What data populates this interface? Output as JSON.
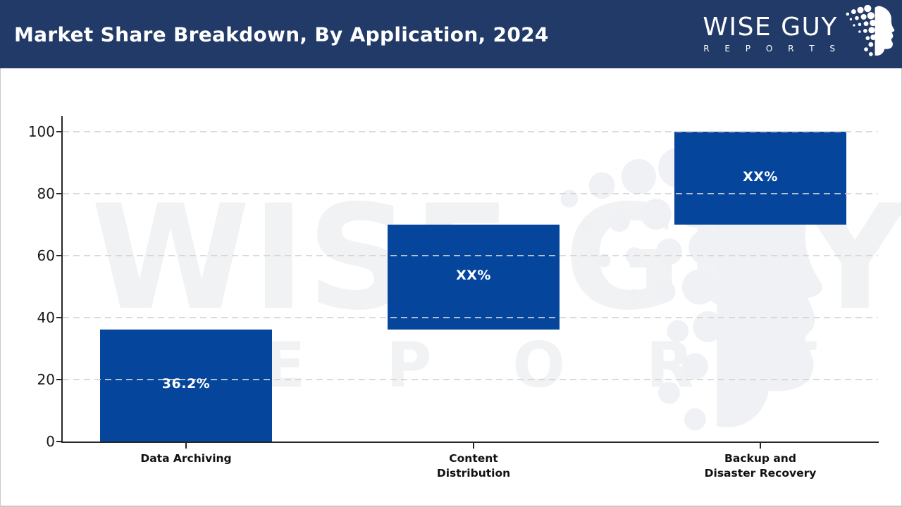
{
  "header": {
    "title": "Market Share Breakdown, By Application, 2024",
    "logo": {
      "line1": "WISE GUY",
      "line2": "R E P O R T S"
    }
  },
  "watermark": {
    "line1": "WISE GUY",
    "line2": "R E P O R T S"
  },
  "colors": {
    "header_bg": "#223A68",
    "bar_blue": "#05459C",
    "bar_label_text": "#FFFFFF",
    "gridline": "#D4D4D4",
    "watermark_gray": "#F1F2F4"
  },
  "chart_data": {
    "type": "bar",
    "variant": "floating-segment-bars",
    "title": "Market Share Breakdown, By Application, 2024",
    "categories": [
      "Data Archiving",
      "Content Distribution",
      "Backup and Disaster Recovery"
    ],
    "category_label_lines": [
      [
        "Data Archiving"
      ],
      [
        "Content",
        "Distribution"
      ],
      [
        "Backup and",
        "Disaster Recovery"
      ]
    ],
    "bars": [
      {
        "category": "Data Archiving",
        "start": 0,
        "end": 36.2,
        "label": "36.2%"
      },
      {
        "category": "Content Distribution",
        "start": 36.2,
        "end": 70,
        "label": "XX%"
      },
      {
        "category": "Backup and Disaster Recovery",
        "start": 70,
        "end": 100,
        "label": "XX%"
      }
    ],
    "xlabel": "",
    "ylabel": "",
    "ylim": [
      0,
      105
    ],
    "yticks": [
      0,
      20,
      40,
      60,
      80,
      100
    ],
    "grid": "horizontal-dashed",
    "legend": "none",
    "bar_color": "#05459C"
  }
}
